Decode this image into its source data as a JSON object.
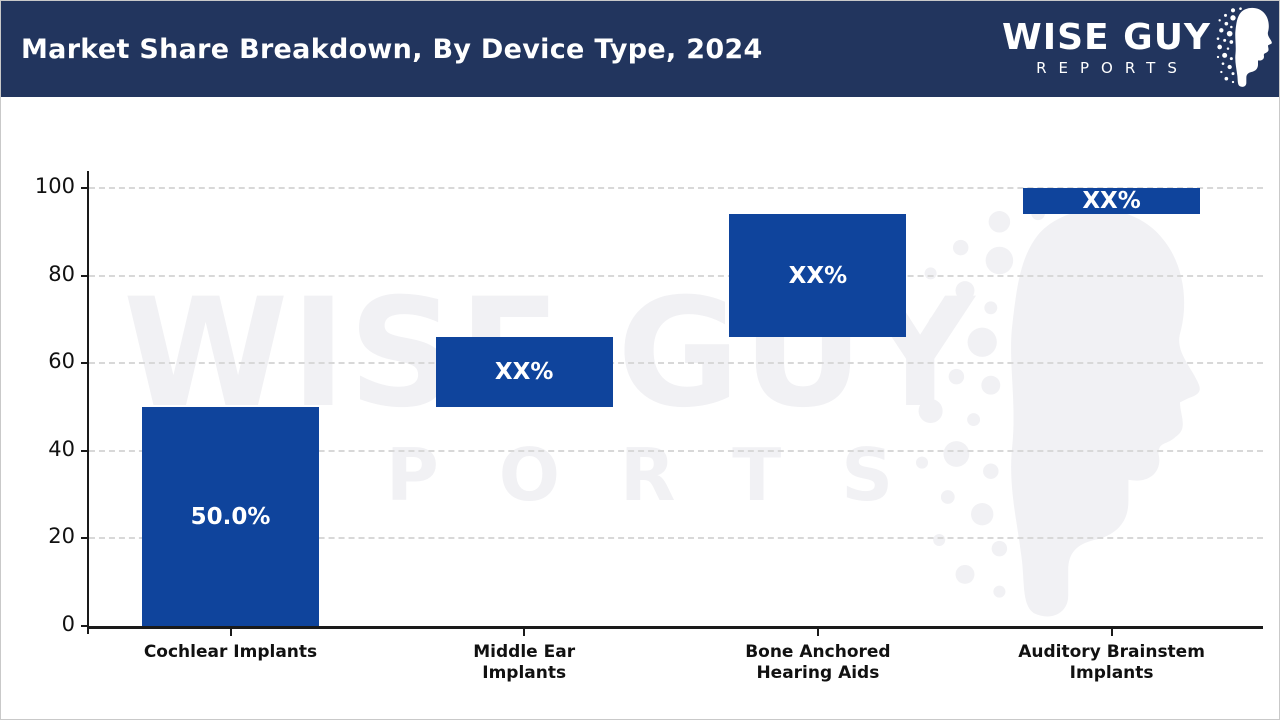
{
  "header": {
    "title": "Market Share Breakdown, By Device Type, 2024",
    "logo": {
      "name_top": "WISE GUY",
      "name_bottom": "REPORTS",
      "icon": "dotted-head-profile-icon"
    }
  },
  "watermark": {
    "line1": "WISE GUY",
    "line2": "PORTS",
    "icon": "dotted-head-profile-icon"
  },
  "colors": {
    "header_bg": "#22355e",
    "bar": "#0f449c",
    "bar_label": "#ffffff",
    "axis": "#1a1a1a",
    "gridline": "#d8d8d8",
    "watermark": "#f1f1f4",
    "title_text": "#ffffff",
    "tick_text": "#111111"
  },
  "chart_data": {
    "type": "bar",
    "subtype": "waterfall",
    "title": "Market Share Breakdown, By Device Type, 2024",
    "xlabel": "",
    "ylabel": "",
    "ylim": [
      0,
      100
    ],
    "yticks": [
      0,
      20,
      40,
      60,
      80,
      100
    ],
    "grid": "horizontal-dashed",
    "legend": "none",
    "categories": [
      "Cochlear Implants",
      "Middle Ear\nImplants",
      "Bone Anchored\nHearing Aids",
      "Auditory Brainstem\nImplants"
    ],
    "segments": [
      {
        "category": "Cochlear Implants",
        "start": 0,
        "end": 50,
        "label": "50.0%"
      },
      {
        "category": "Middle Ear Implants",
        "start": 50,
        "end": 66,
        "label": "XX%"
      },
      {
        "category": "Bone Anchored Hearing Aids",
        "start": 66,
        "end": 94,
        "label": "XX%"
      },
      {
        "category": "Auditory Brainstem Implants",
        "start": 94,
        "end": 100,
        "label": "XX%"
      }
    ]
  }
}
